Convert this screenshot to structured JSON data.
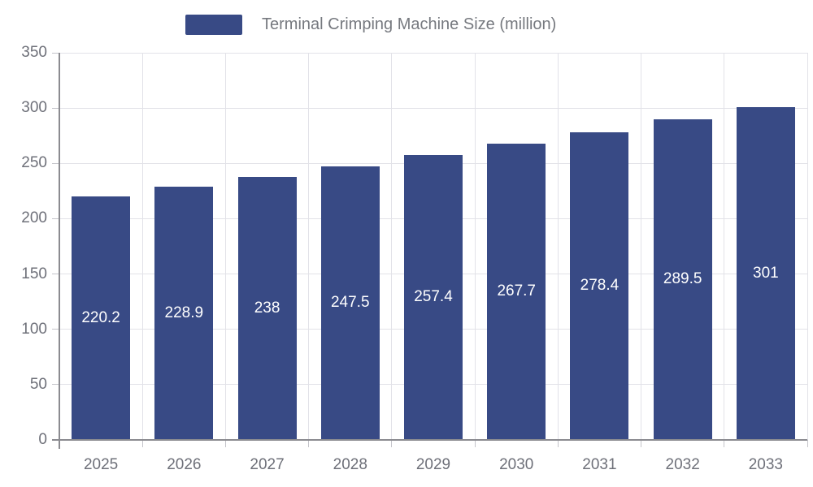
{
  "legend": {
    "label": "Terminal Crimping Machine Size (million)"
  },
  "chart_data": {
    "type": "bar",
    "title": "Terminal Crimping Machine Size (million)",
    "categories": [
      "2025",
      "2026",
      "2027",
      "2028",
      "2029",
      "2030",
      "2031",
      "2032",
      "2033"
    ],
    "values": [
      220.2,
      228.9,
      238,
      247.5,
      257.4,
      267.7,
      278.4,
      289.5,
      301
    ],
    "value_labels": [
      "220.2",
      "228.9",
      "238",
      "247.5",
      "257.4",
      "267.7",
      "278.4",
      "289.5",
      "301"
    ],
    "xlabel": "",
    "ylabel": "",
    "ylim": [
      0,
      350
    ],
    "ytick_step": 50,
    "ytick_labels": [
      "0",
      "50",
      "100",
      "150",
      "200",
      "250",
      "300",
      "350"
    ],
    "grid": true,
    "legend_position": "top",
    "colors": {
      "bar": "#384a85",
      "value_label": "#ffffff",
      "axis_line": "#8b8b90",
      "grid_line": "#e2e2e8",
      "tick": "#c4c4ca",
      "axis_label": "#6e7079",
      "legend_text": "#76797f"
    }
  }
}
